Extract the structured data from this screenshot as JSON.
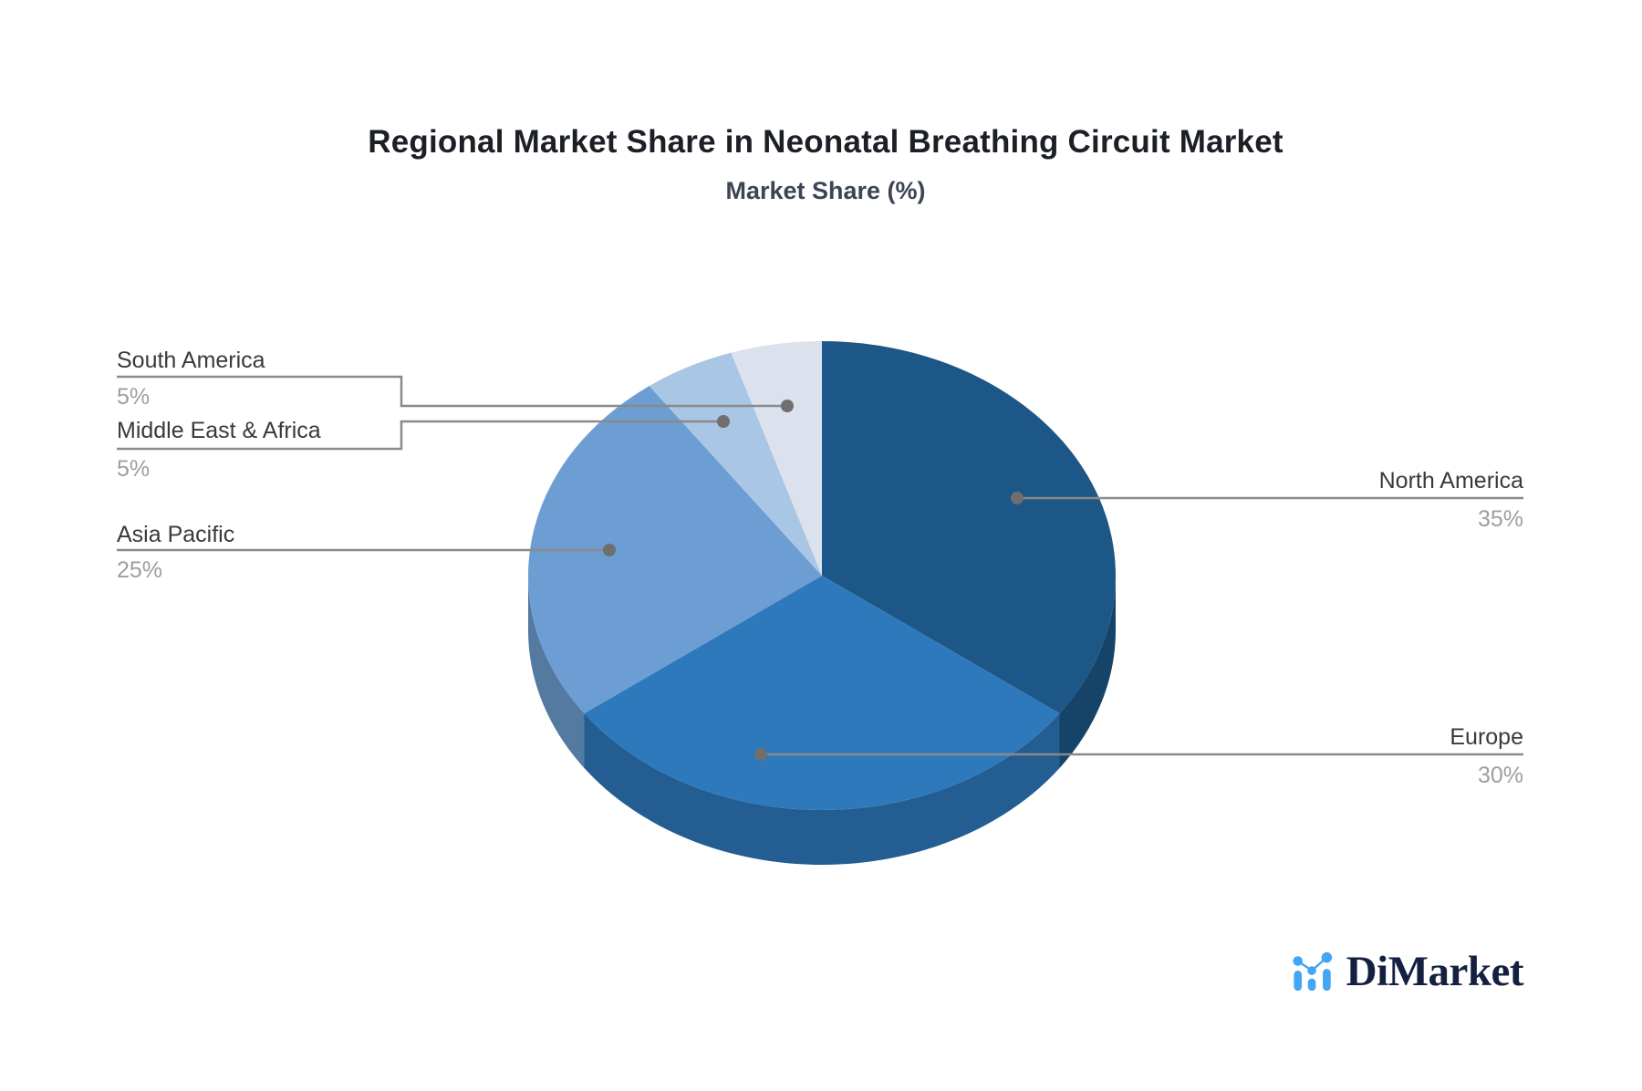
{
  "header": {
    "title": "Regional Market Share in Neonatal Breathing Circuit Market",
    "subtitle": "Market Share (%)"
  },
  "chart_data": {
    "type": "pie",
    "style": "3d",
    "title": "Regional Market Share in Neonatal Breathing Circuit Market",
    "subtitle": "Market Share (%)",
    "unit": "%",
    "start_angle_deg": -90,
    "direction": "clockwise",
    "legend_position": "callout-labels",
    "series": [
      {
        "label": "North America",
        "value": 35,
        "display": "35%",
        "color": "#1d5787"
      },
      {
        "label": "Europe",
        "value": 30,
        "display": "30%",
        "color": "#2e79bc"
      },
      {
        "label": "Asia Pacific",
        "value": 25,
        "display": "25%",
        "color": "#6d9ed3"
      },
      {
        "label": "Middle East & Africa",
        "value": 5,
        "display": "5%",
        "color": "#a9c6e4"
      },
      {
        "label": "South America",
        "value": 5,
        "display": "5%",
        "color": "#dbe2ee"
      }
    ],
    "leader_line_color": "#8a8a8a",
    "dot_color": "#6f6f6f",
    "label_name_color": "#3a3a3a",
    "label_value_color": "#9e9e9e"
  },
  "logo": {
    "name": "DiMarket",
    "icon": "bar-line-chart-icon",
    "text_color": "#13203f",
    "icon_color": "#42a5f5"
  }
}
